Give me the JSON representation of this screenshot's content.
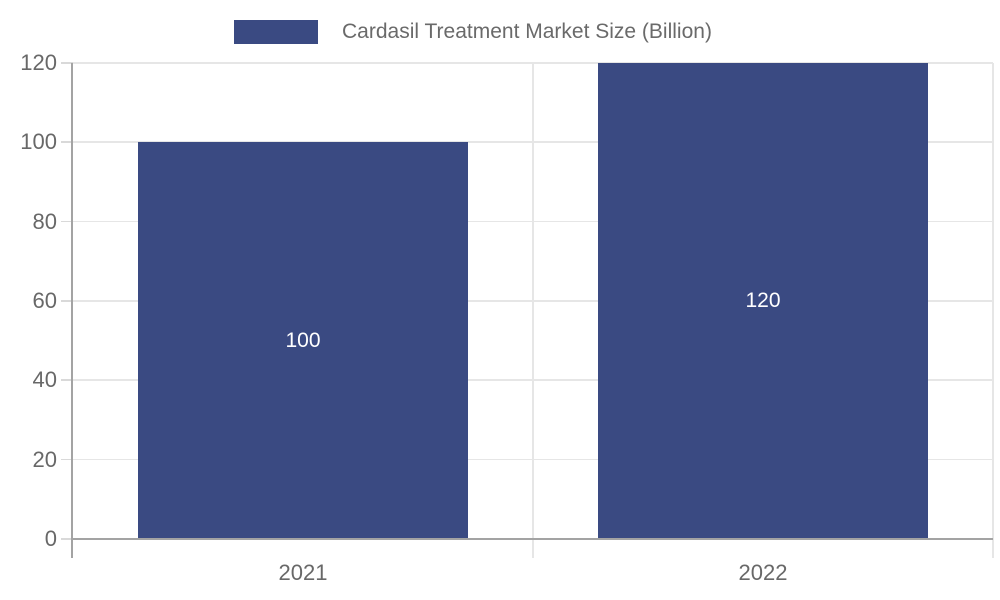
{
  "chart_data": {
    "type": "bar",
    "title": "Cardasil Treatment Market Size (Billion)",
    "categories": [
      "2021",
      "2022"
    ],
    "series": [
      {
        "name": "Cardasil Treatment Market Size (Billion)",
        "values": [
          100,
          120
        ]
      }
    ],
    "data_labels": [
      "100",
      "120"
    ],
    "yticks": [
      0,
      20,
      40,
      60,
      80,
      100,
      120
    ],
    "ylim": [
      0,
      120
    ],
    "xlabel": "",
    "ylabel": "",
    "grid": true,
    "legend_position": "top",
    "colors": {
      "bar": "#3A4A82",
      "grid": "#e6e6e6",
      "tick": "#d9d9d9",
      "axis": "#a3a3a3",
      "tick_label": "#686868",
      "legend_label": "#6a6a6a",
      "data_label": "#ffffff",
      "background": "#ffffff"
    }
  }
}
